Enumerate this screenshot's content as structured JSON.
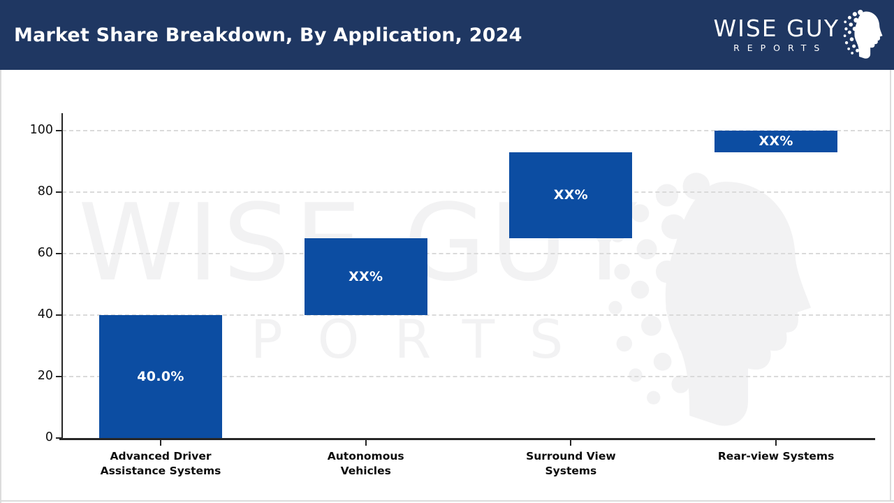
{
  "header": {
    "title": "Market Share Breakdown, By Application, 2024",
    "logo": {
      "name": "WISE GUY",
      "sub": "REPORTS"
    }
  },
  "watermark": {
    "name": "WISE GUY",
    "sub": "REPORTS"
  },
  "colors": {
    "header_bg": "#1f3762",
    "bar": "#0c4da2",
    "grid": "#dadada",
    "axis": "#262626",
    "watermark": "#f2f2f3",
    "bar_label": "#ffffff"
  },
  "chart_data": {
    "type": "bar",
    "subtype": "waterfall",
    "title": "Market Share Breakdown, By Application, 2024",
    "categories": [
      "Advanced Driver Assistance Systems",
      "Autonomous Vehicles",
      "Surround View Systems",
      "Rear-view Systems"
    ],
    "category_lines": [
      [
        "Advanced Driver",
        "Assistance Systems"
      ],
      [
        "Autonomous",
        "Vehicles"
      ],
      [
        "Surround View",
        "Systems"
      ],
      [
        "Rear-view Systems"
      ]
    ],
    "series": [
      {
        "name": "Market share (%)",
        "segments": [
          {
            "start": 0,
            "end": 40,
            "value": 40,
            "label": "40.0%"
          },
          {
            "start": 40,
            "end": 65,
            "value": 25,
            "label": "XX%"
          },
          {
            "start": 65,
            "end": 93,
            "value": 28,
            "label": "XX%"
          },
          {
            "start": 93,
            "end": 100,
            "value": 7,
            "label": "XX%"
          }
        ]
      }
    ],
    "ylim": [
      0,
      100
    ],
    "yticks": [
      0,
      20,
      40,
      60,
      80,
      100
    ],
    "xlabel": "",
    "ylabel": "",
    "grid": "horizontal-dashed",
    "legend": "none"
  }
}
